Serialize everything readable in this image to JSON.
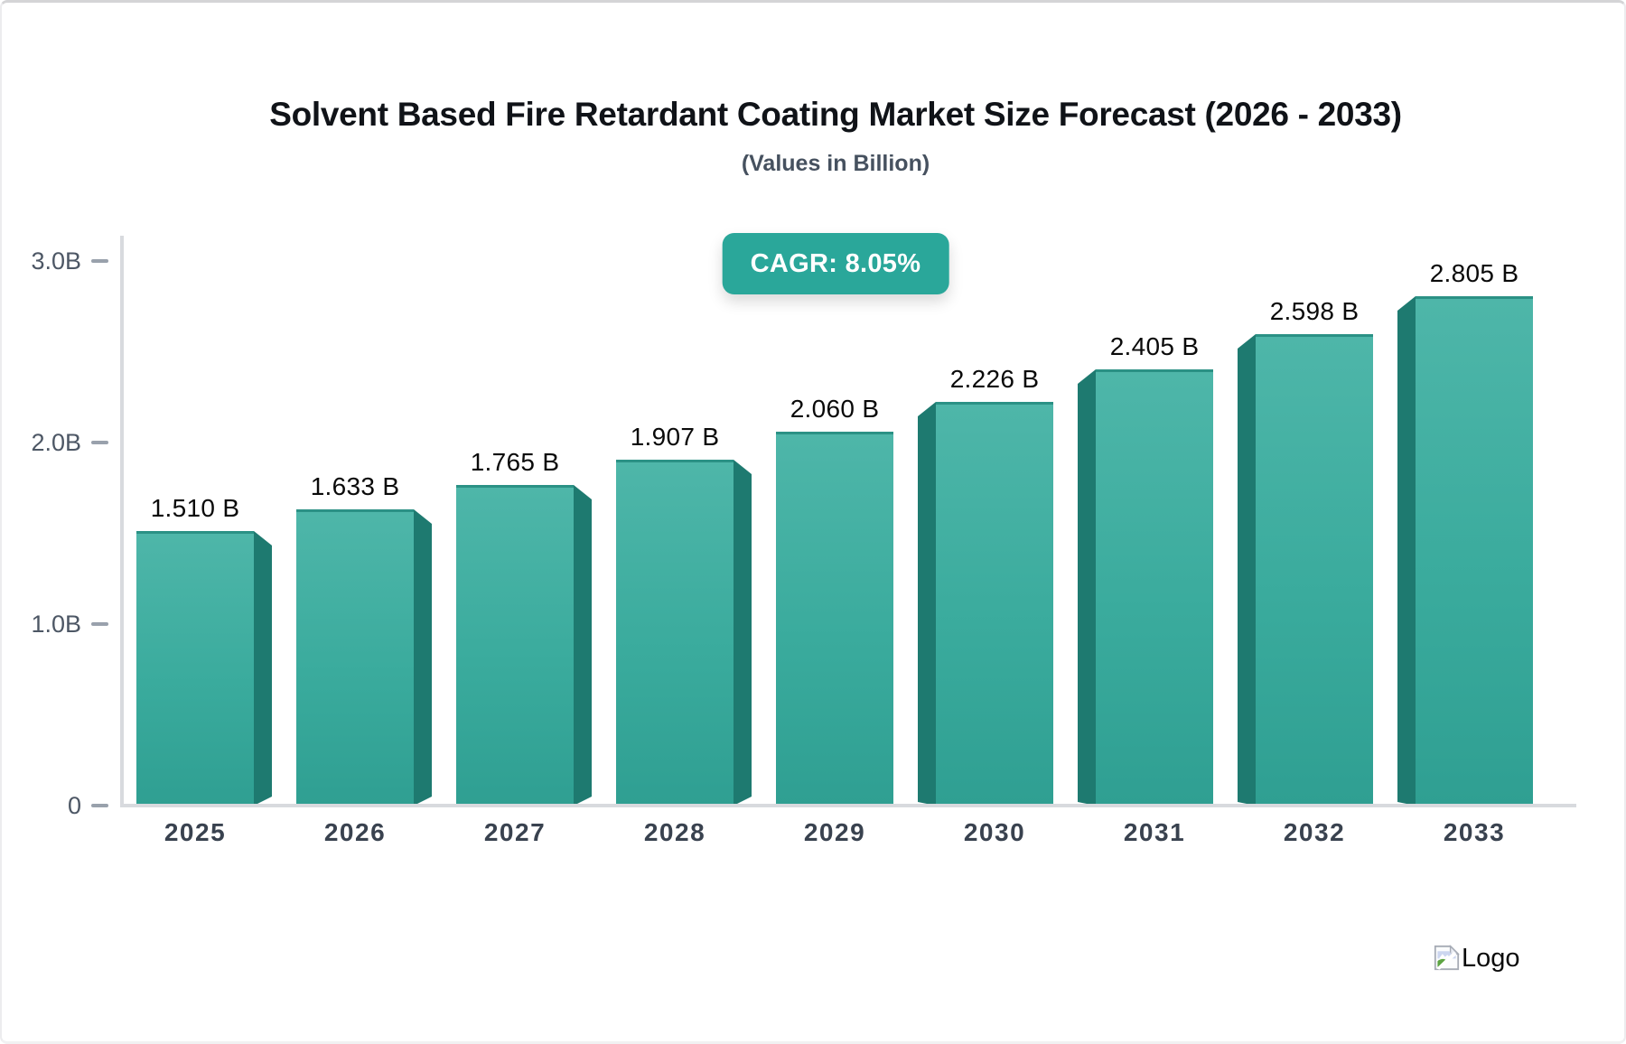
{
  "header": {
    "title": "Solvent Based Fire Retardant Coating Market Size Forecast (2026 - 2033)",
    "subtitle": "(Values in Billion)",
    "cagr_badge": "CAGR: 8.05%"
  },
  "chart_data": {
    "type": "bar",
    "title": "Solvent Based Fire Retardant Coating Market Size Forecast (2026 - 2033)",
    "subtitle": "(Values in Billion)",
    "cagr_label": "CAGR: 8.05%",
    "categories": [
      "2025",
      "2026",
      "2027",
      "2028",
      "2029",
      "2030",
      "2031",
      "2032",
      "2033"
    ],
    "values": [
      1.51,
      1.633,
      1.765,
      1.907,
      2.06,
      2.226,
      2.405,
      2.598,
      2.805
    ],
    "value_labels": [
      "1.510 B",
      "1.633 B",
      "1.765 B",
      "1.907 B",
      "2.060 B",
      "2.226 B",
      "2.405 B",
      "2.598 B",
      "2.805 B"
    ],
    "y_ticks": [
      {
        "label": "3.0B",
        "value": 3.0
      },
      {
        "label": "2.0B",
        "value": 2.0
      },
      {
        "label": "1.0B",
        "value": 1.0
      },
      {
        "label": "0",
        "value": 0
      }
    ],
    "ylim": [
      0,
      3.0
    ],
    "grid": "off",
    "legend": "none",
    "colors": {
      "bar_face_top": "#4eb6a9",
      "bar_face_bottom": "#2f9f92",
      "bar_side": "#1e7a70",
      "bar_top_edge": "#2b9185",
      "badge_bg": "#2aa79a",
      "axis_line": "#d8dade",
      "tick_dash": "#99a1ac",
      "tick_text": "#4d5765",
      "year_text": "#39424f",
      "value_text": "#0a0a0a",
      "title_text": "#101318",
      "subtitle_text": "#46515f"
    }
  },
  "footer": {
    "logo_text": "Logo"
  }
}
